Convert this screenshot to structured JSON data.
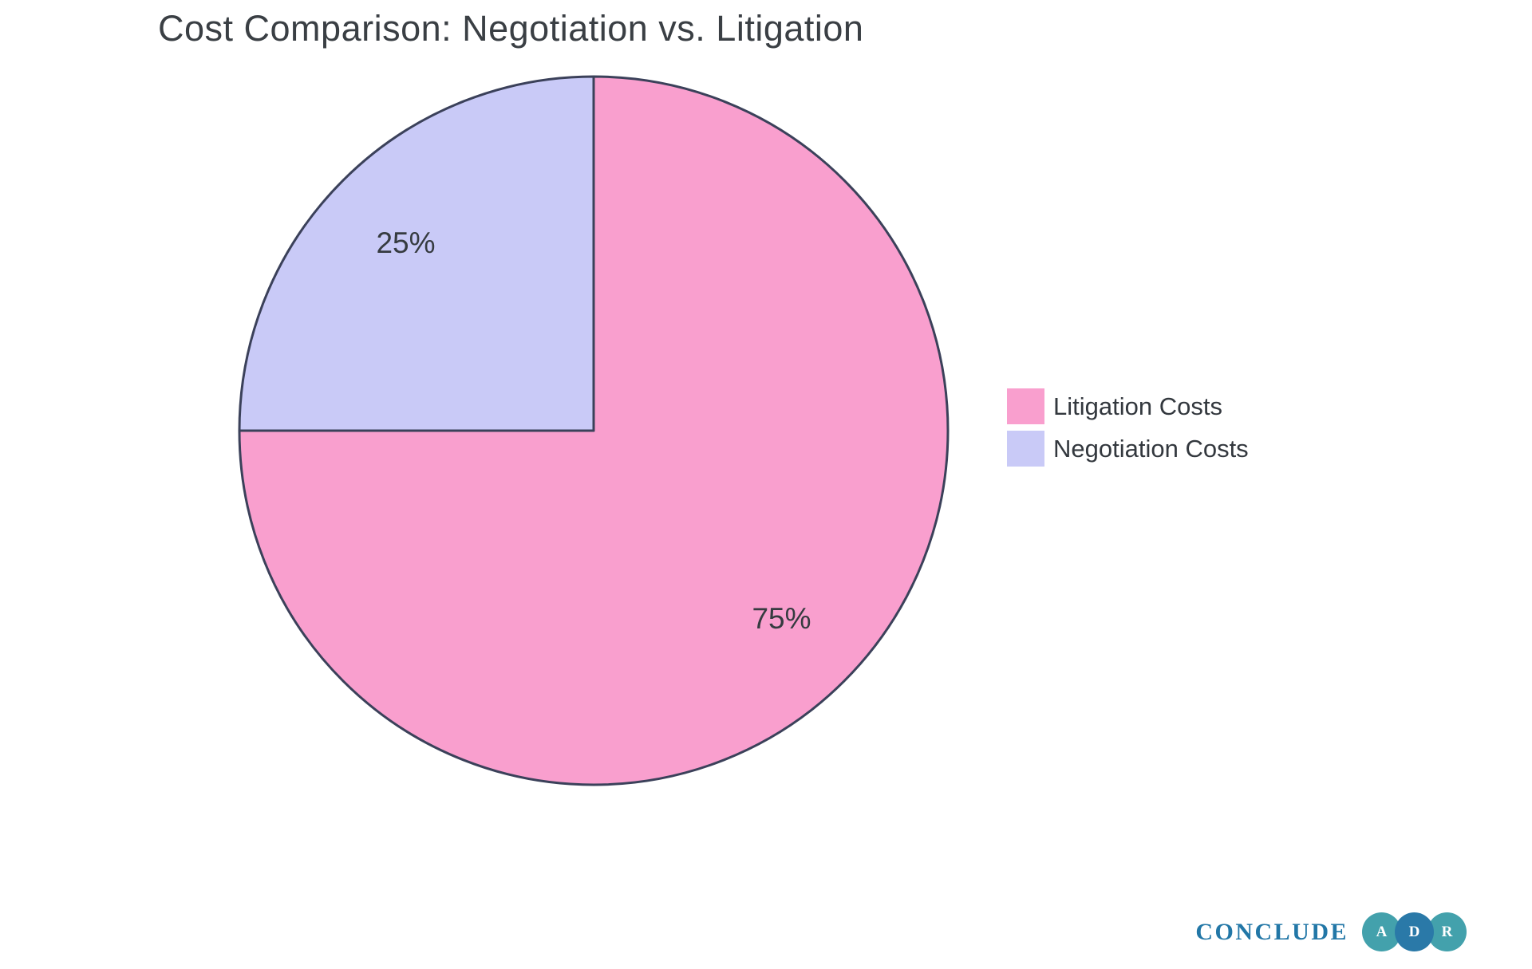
{
  "header": {
    "title": "Cost Comparison: Negotiation vs. Litigation"
  },
  "chart_data": {
    "type": "pie",
    "title": "Cost Comparison: Negotiation vs. Litigation",
    "labels": [
      "Litigation Costs",
      "Negotiation Costs"
    ],
    "values": [
      75,
      25
    ],
    "percent_labels": [
      "75%",
      "25%"
    ],
    "slice_colors": [
      "#F99FCE",
      "#C9CAF7"
    ],
    "slice_stroke_color": "#3B415A",
    "percent_label_color": "#363B40",
    "start_angle": "12-oclock",
    "direction": "clockwise",
    "legend_position": "right-middle",
    "grid": "off"
  },
  "legend": {
    "items": [
      {
        "label": "Litigation Costs",
        "color": "#F99FCE"
      },
      {
        "label": "Negotiation Costs",
        "color": "#C9CAF7"
      }
    ]
  },
  "branding": {
    "wordmark": "CONCLUDE",
    "wordmark_color": "#2277A7",
    "badges": [
      {
        "letter": "A",
        "color": "#43A1AC"
      },
      {
        "letter": "D",
        "color": "#2A79A8"
      },
      {
        "letter": "R",
        "color": "#43A1AC"
      }
    ]
  }
}
